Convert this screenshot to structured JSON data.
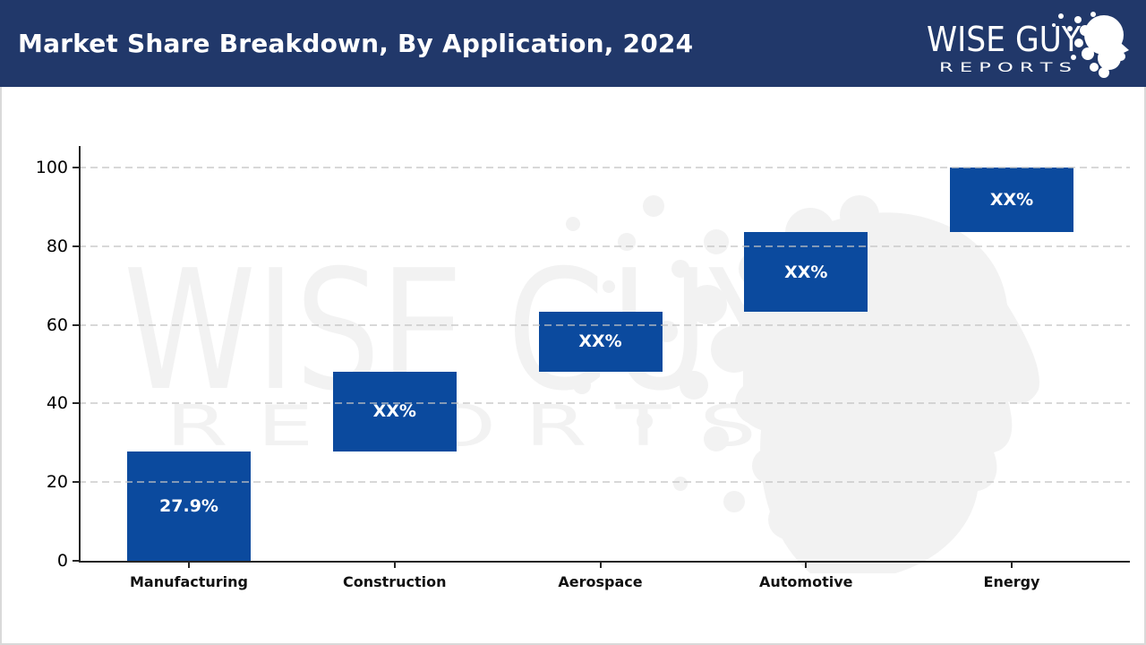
{
  "header": {
    "title": "Market Share Breakdown, By Application, 2024",
    "logo": {
      "line1": "WISE GUY",
      "line2": "R E P O R T S"
    },
    "bg_color": "#21386a"
  },
  "watermark": {
    "line1": "WISE GUY",
    "line2": "R E P O R T S"
  },
  "chart_data": {
    "type": "bar",
    "variant": "waterfall",
    "title": "Market Share Breakdown, By Application, 2024",
    "categories": [
      "Manufacturing",
      "Construction",
      "Aerospace",
      "Automotive",
      "Energy"
    ],
    "bars": [
      {
        "category": "Manufacturing",
        "start": 0,
        "end": 27.9,
        "label": "27.9%"
      },
      {
        "category": "Construction",
        "start": 27.9,
        "end": 48.1,
        "label": "XX%"
      },
      {
        "category": "Aerospace",
        "start": 48.1,
        "end": 63.3,
        "label": "XX%"
      },
      {
        "category": "Automotive",
        "start": 63.3,
        "end": 83.5,
        "label": "XX%"
      },
      {
        "category": "Energy",
        "start": 83.5,
        "end": 100,
        "label": "XX%"
      }
    ],
    "yticks": [
      0,
      20,
      40,
      60,
      80,
      100
    ],
    "ylim": [
      0,
      105
    ],
    "grid": "horizontal-dashed",
    "legend": "none",
    "bar_color": "#0b4a9e",
    "axis_color": "#262626"
  }
}
